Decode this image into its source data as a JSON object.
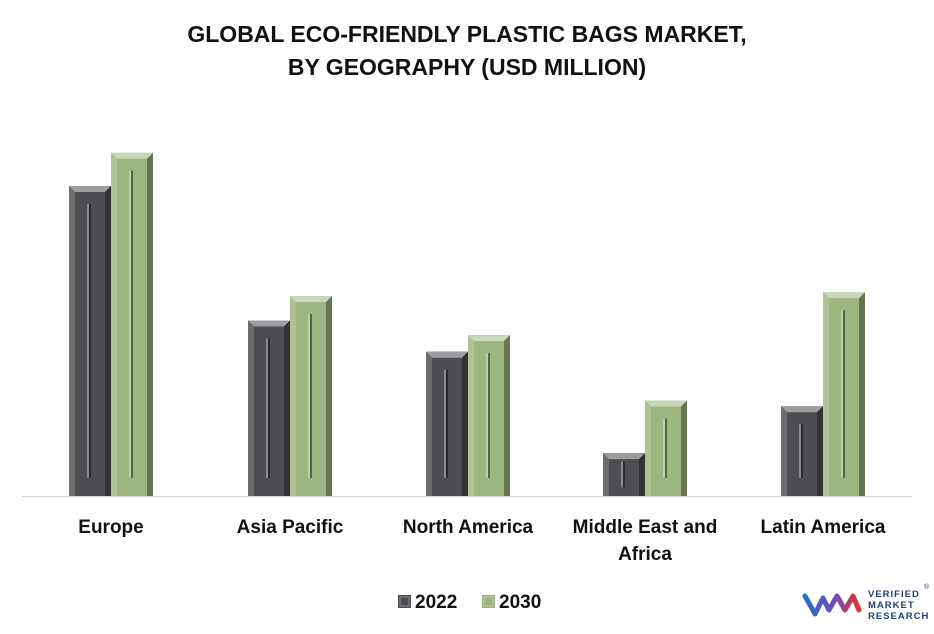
{
  "title_lines": [
    "GLOBAL ECO-FRIENDLY PLASTIC BAGS MARKET,",
    "BY GEOGRAPHY (USD MILLION)"
  ],
  "colors": {
    "series_2022": "#4d4d52",
    "series_2030": "#9db57f",
    "baseline": "#d0d0d0"
  },
  "chart_data": {
    "type": "bar",
    "title": "GLOBAL ECO-FRIENDLY PLASTIC BAGS MARKET, BY GEOGRAPHY (USD MILLION)",
    "categories": [
      [
        "Europe"
      ],
      [
        "Asia Pacific"
      ],
      [
        "North America"
      ],
      [
        "Middle East and",
        "Africa"
      ],
      [
        "Latin America"
      ]
    ],
    "series": [
      {
        "name": "2022",
        "values": [
          318,
          180,
          148,
          44,
          92
        ]
      },
      {
        "name": "2030",
        "values": [
          352,
          205,
          165,
          98,
          209
        ]
      }
    ],
    "xlabel": "",
    "ylabel": "",
    "ylim": [
      0,
      360
    ],
    "grid": false,
    "legend": "bottom"
  },
  "logo": {
    "lines": [
      "VERIFIED",
      "MARKET",
      "RESEARCH"
    ],
    "mark": "®"
  }
}
